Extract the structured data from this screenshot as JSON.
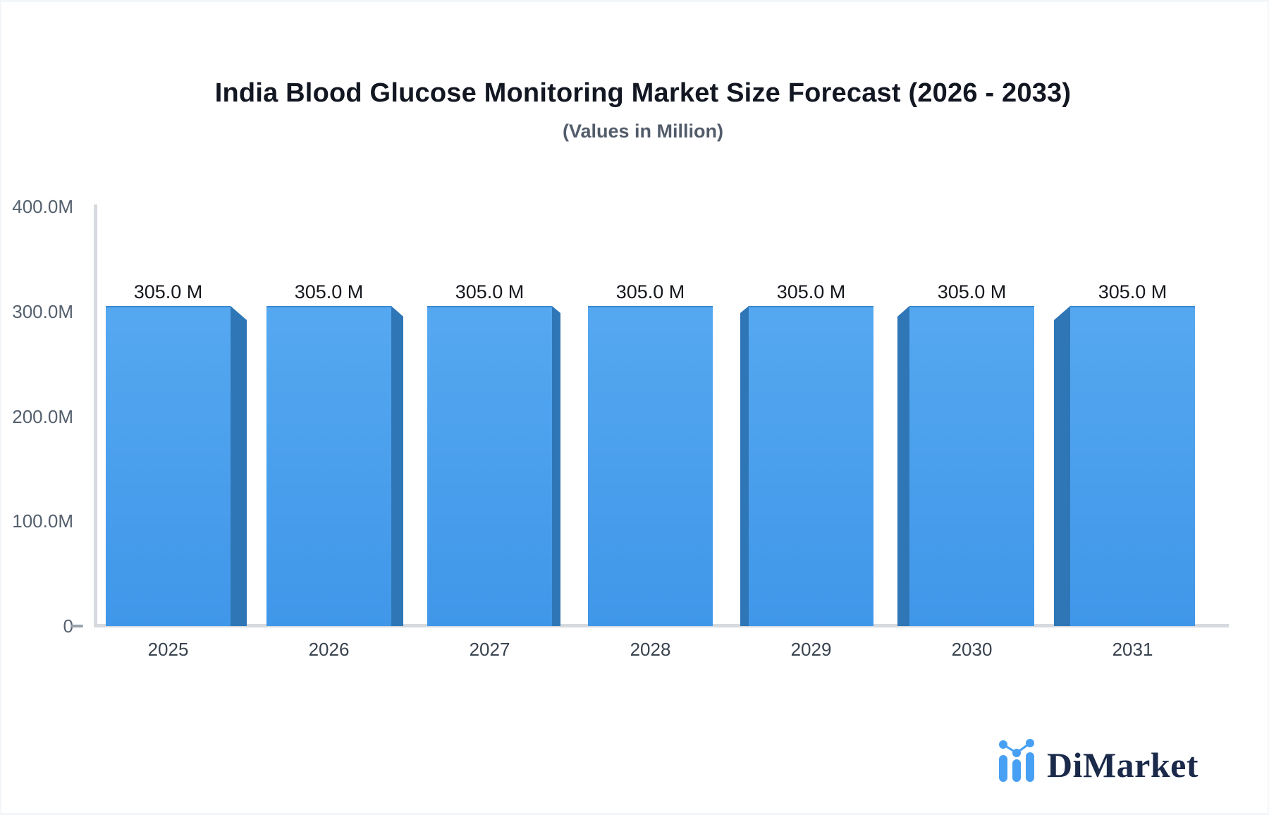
{
  "page": {
    "background_color": "#f3f6f9",
    "card_color": "#ffffff"
  },
  "header": {
    "title": "India Blood Glucose Monitoring Market Size Forecast (2026 - 2033)",
    "subtitle": "(Values in Million)"
  },
  "chart_data": {
    "type": "bar",
    "title": "India Blood Glucose Monitoring Market Size Forecast (2026 - 2033)",
    "subtitle": "(Values in Million)",
    "categories": [
      "2025",
      "2026",
      "2027",
      "2028",
      "2029",
      "2030",
      "2031"
    ],
    "values": [
      305.0,
      305.0,
      305.0,
      305.0,
      305.0,
      305.0,
      305.0
    ],
    "value_labels": [
      "305.0 M",
      "305.0 M",
      "305.0 M",
      "305.0 M",
      "305.0 M",
      "305.0 M",
      "305.0 M"
    ],
    "ylim": [
      0,
      400
    ],
    "yticks": [
      {
        "value": 400,
        "label": "400.0M",
        "tick_mark": false
      },
      {
        "value": 300,
        "label": "300.0M",
        "tick_mark": false
      },
      {
        "value": 200,
        "label": "200.0M",
        "tick_mark": false
      },
      {
        "value": 100,
        "label": "100.0M",
        "tick_mark": false
      },
      {
        "value": 0,
        "label": "0",
        "tick_mark": true
      }
    ],
    "grid": false,
    "legend": false,
    "style": "pseudo-3d bars, depth side facing chart center",
    "bar_color": "#4a9fed",
    "bar_side_color": "#2f76b7",
    "axis_color": "#d6dadf"
  },
  "branding": {
    "name": "DiMarket",
    "icon": "mini-bar-line-chart-icon",
    "text_color": "#1b2a4a",
    "icon_color": "#47a0f4"
  }
}
